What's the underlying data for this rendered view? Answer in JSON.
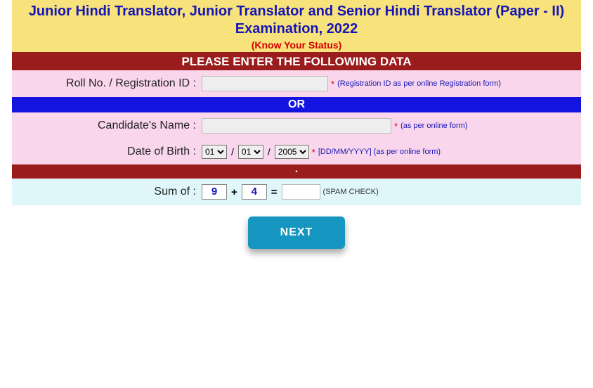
{
  "header": {
    "title": "Junior Hindi Translator, Junior Translator and Senior Hindi Translator (Paper - II) Examination, 2022",
    "subtitle": "(Know Your Status)"
  },
  "section_heading": "PLEASE ENTER THE FOLLOWING DATA",
  "roll": {
    "label": "Roll No. / Registration ID :",
    "hint": "(Registration ID as per online Registration form)"
  },
  "or_label": "OR",
  "name": {
    "label": "Candidate's Name :",
    "hint": "(as per online form)"
  },
  "dob": {
    "label": "Date of Birth :",
    "day": "01",
    "month": "01",
    "year": "2005",
    "hint": "[DD/MM/YYYY] (as per online form)"
  },
  "dot": ".",
  "captcha": {
    "label": "Sum of :",
    "a": "9",
    "b": "4",
    "hint": "(SPAM CHECK)"
  },
  "next_label": "NEXT"
}
